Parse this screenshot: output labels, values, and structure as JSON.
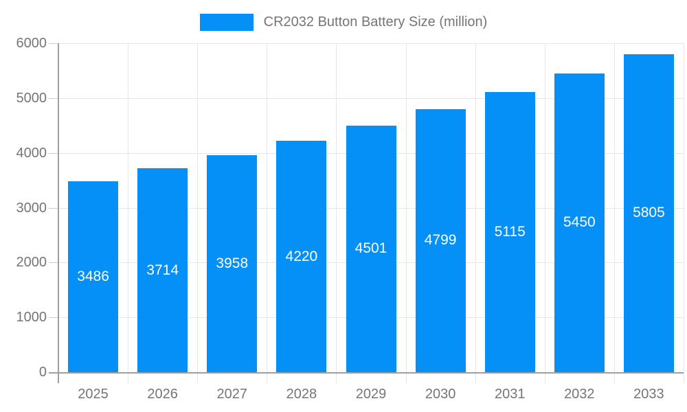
{
  "chart_data": {
    "type": "bar",
    "title": "CR2032 Button Battery Size (million)",
    "categories": [
      "2025",
      "2026",
      "2027",
      "2028",
      "2029",
      "2030",
      "2031",
      "2032",
      "2033"
    ],
    "values": [
      3486,
      3714,
      3958,
      4220,
      4501,
      4799,
      5115,
      5450,
      5805
    ],
    "series": [
      {
        "name": "CR2032 Button Battery Size (million)",
        "values": [
          3486,
          3714,
          3958,
          4220,
          4501,
          4799,
          5115,
          5450,
          5805
        ]
      }
    ],
    "xlabel": "",
    "ylabel": "",
    "ylim": [
      0,
      6000
    ],
    "yticks": [
      0,
      1000,
      2000,
      3000,
      4000,
      5000,
      6000
    ],
    "grid": true,
    "legend_position": "top-center",
    "data_labels_position": "inside-center",
    "colors": {
      "bar": "#0590f8",
      "grid": "#e6e6e6",
      "axis": "#9e9e9e",
      "tick": "#cccccc",
      "axis_text": "#757575",
      "legend_text": "#757575",
      "data_label_text": "#ffffff",
      "background": "#ffffff"
    }
  }
}
